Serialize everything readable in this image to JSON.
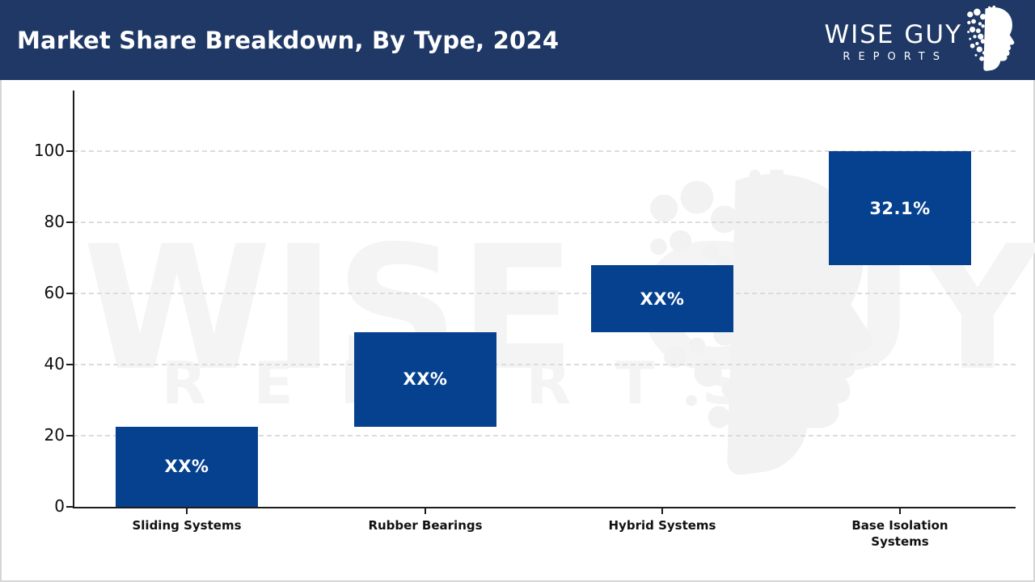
{
  "header": {
    "title": "Market Share Breakdown, By Type, 2024",
    "logo": {
      "line1": "WISE GUY",
      "line2": "REPORTS"
    }
  },
  "watermark": {
    "line1": "WISE GUY",
    "line2": "REPORTS"
  },
  "colors": {
    "header_bg": "#1f3865",
    "bar_blue": "#06418f",
    "axis": "#1c1c1c",
    "gridline": "#dcdcdc",
    "watermark_gray": "#f4f4f4",
    "title_text": "#ffffff",
    "bar_label_text": "#ffffff"
  },
  "chart_data": {
    "type": "bar",
    "subtype": "floating-waterfall",
    "title": "Market Share Breakdown, By Type, 2024",
    "categories": [
      "Sliding Systems",
      "Rubber Bearings",
      "Hybrid Systems",
      "Base Isolation Systems"
    ],
    "segments": [
      {
        "category": "Sliding Systems",
        "start": 0,
        "end": 22.6,
        "value": 22.6,
        "label": "XX%"
      },
      {
        "category": "Rubber Bearings",
        "start": 22.6,
        "end": 49.0,
        "value": 26.4,
        "label": "XX%"
      },
      {
        "category": "Hybrid Systems",
        "start": 49.0,
        "end": 67.9,
        "value": 18.9,
        "label": "XX%"
      },
      {
        "category": "Base Isolation Systems",
        "start": 67.9,
        "end": 100,
        "value": 32.1,
        "label": "32.1%"
      }
    ],
    "y_ticks": [
      0,
      20,
      40,
      60,
      80,
      100
    ],
    "ylim": [
      0,
      105
    ],
    "xlabel": "",
    "ylabel": "",
    "grid": "horizontal-dashed",
    "legend": "none",
    "bar_color": "#06418f"
  }
}
